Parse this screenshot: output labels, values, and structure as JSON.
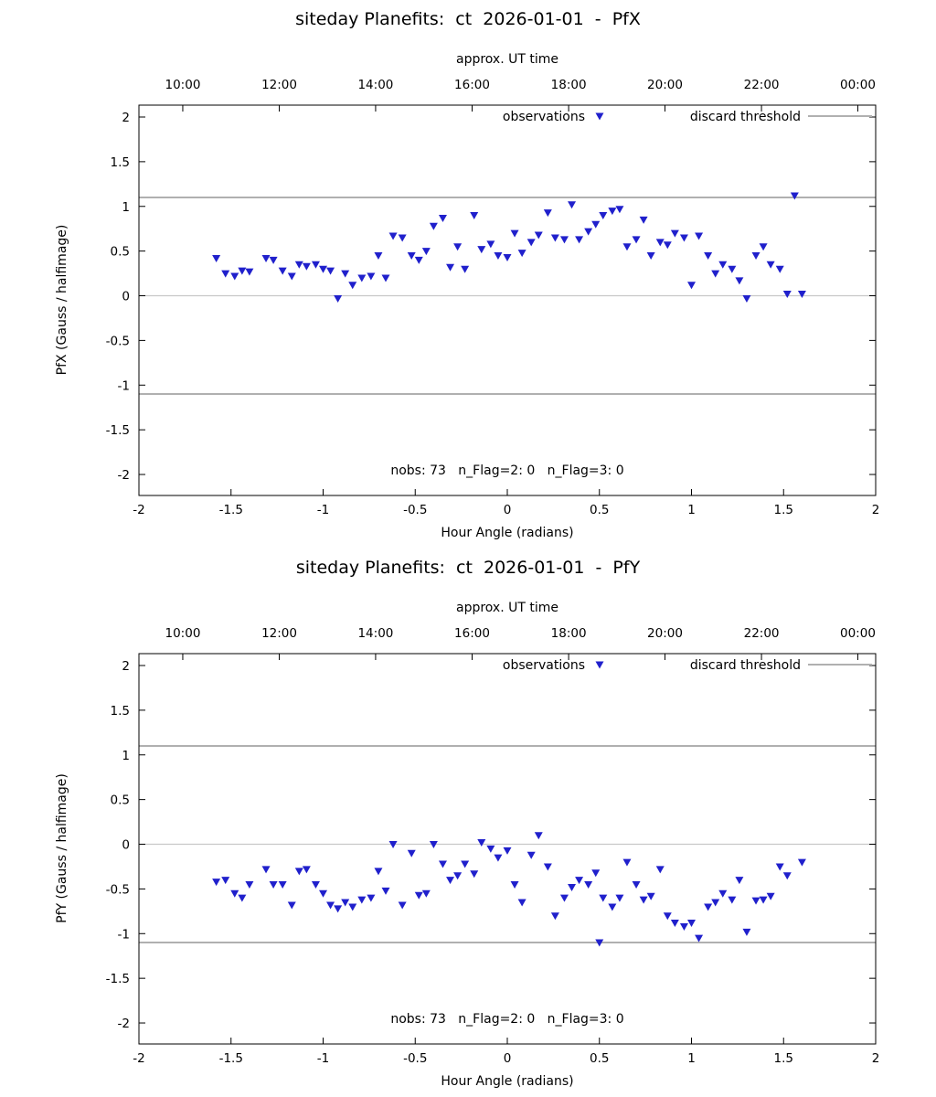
{
  "colors": {
    "points": "#2020cc",
    "threshold_line": "#b0b0b0",
    "zero_line": "#c8c8c8",
    "border": "#000000"
  },
  "chart_data": [
    {
      "type": "scatter",
      "marker": "triangle-down",
      "title": "siteday Planefits:  ct  2026-01-01  -  PfX",
      "top_axis_label": "approx. UT time",
      "xlabel": "Hour Angle (radians)",
      "ylabel": "PfX (Gauss / halfimage)",
      "annotation": "nobs: 73   n_Flag=2: 0   n_Flag=3: 0",
      "legend": [
        {
          "label": "observations",
          "marker": "triangle-down"
        },
        {
          "label": "discard threshold",
          "marker": "line"
        }
      ],
      "xlim": [
        -2,
        2
      ],
      "ylim": [
        -2.235,
        2.133
      ],
      "x_ticks": [
        -2,
        -1.5,
        -1,
        -0.5,
        0,
        0.5,
        1,
        1.5,
        2
      ],
      "x_tick_labels": [
        "-2",
        "-1.5",
        "-1",
        "-0.5",
        "0",
        "0.5",
        "1",
        "1.5",
        "2"
      ],
      "y_ticks": [
        -2,
        -1.5,
        -1,
        -0.5,
        0,
        0.5,
        1,
        1.5,
        2
      ],
      "y_tick_labels": [
        "-2",
        "-1.5",
        "-1",
        "-0.5",
        "0",
        "0.5",
        "1",
        "1.5",
        "2"
      ],
      "ut_ticks": [
        {
          "label": "10:00",
          "x": -1.762
        },
        {
          "label": "12:00",
          "x": -1.238
        },
        {
          "label": "14:00",
          "x": -0.715
        },
        {
          "label": "16:00",
          "x": -0.191
        },
        {
          "label": "18:00",
          "x": 0.333
        },
        {
          "label": "20:00",
          "x": 0.856
        },
        {
          "label": "22:00",
          "x": 1.38
        },
        {
          "label": "00:00",
          "x": 1.903
        }
      ],
      "thresholds": [
        1.1,
        -1.1
      ],
      "zero_line": 0,
      "points": [
        [
          -1.58,
          0.42
        ],
        [
          -1.53,
          0.25
        ],
        [
          -1.48,
          0.22
        ],
        [
          -1.44,
          0.28
        ],
        [
          -1.4,
          0.27
        ],
        [
          -1.31,
          0.42
        ],
        [
          -1.27,
          0.4
        ],
        [
          -1.22,
          0.28
        ],
        [
          -1.17,
          0.22
        ],
        [
          -1.13,
          0.35
        ],
        [
          -1.09,
          0.33
        ],
        [
          -1.04,
          0.35
        ],
        [
          -1.0,
          0.3
        ],
        [
          -0.96,
          0.28
        ],
        [
          -0.92,
          -0.03
        ],
        [
          -0.88,
          0.25
        ],
        [
          -0.84,
          0.12
        ],
        [
          -0.79,
          0.2
        ],
        [
          -0.74,
          0.22
        ],
        [
          -0.7,
          0.45
        ],
        [
          -0.66,
          0.2
        ],
        [
          -0.62,
          0.67
        ],
        [
          -0.57,
          0.65
        ],
        [
          -0.52,
          0.45
        ],
        [
          -0.48,
          0.4
        ],
        [
          -0.44,
          0.5
        ],
        [
          -0.4,
          0.78
        ],
        [
          -0.35,
          0.87
        ],
        [
          -0.31,
          0.32
        ],
        [
          -0.27,
          0.55
        ],
        [
          -0.23,
          0.3
        ],
        [
          -0.18,
          0.9
        ],
        [
          -0.14,
          0.52
        ],
        [
          -0.09,
          0.58
        ],
        [
          -0.05,
          0.45
        ],
        [
          0.0,
          0.43
        ],
        [
          0.04,
          0.7
        ],
        [
          0.08,
          0.48
        ],
        [
          0.13,
          0.6
        ],
        [
          0.17,
          0.68
        ],
        [
          0.22,
          0.93
        ],
        [
          0.26,
          0.65
        ],
        [
          0.31,
          0.63
        ],
        [
          0.35,
          1.02
        ],
        [
          0.39,
          0.63
        ],
        [
          0.44,
          0.72
        ],
        [
          0.48,
          0.8
        ],
        [
          0.52,
          0.9
        ],
        [
          0.57,
          0.95
        ],
        [
          0.61,
          0.97
        ],
        [
          0.65,
          0.55
        ],
        [
          0.7,
          0.63
        ],
        [
          0.74,
          0.85
        ],
        [
          0.78,
          0.45
        ],
        [
          0.83,
          0.6
        ],
        [
          0.87,
          0.57
        ],
        [
          0.91,
          0.7
        ],
        [
          0.96,
          0.65
        ],
        [
          1.0,
          0.12
        ],
        [
          1.04,
          0.67
        ],
        [
          1.09,
          0.45
        ],
        [
          1.13,
          0.25
        ],
        [
          1.17,
          0.35
        ],
        [
          1.22,
          0.3
        ],
        [
          1.26,
          0.17
        ],
        [
          1.3,
          -0.03
        ],
        [
          1.35,
          0.45
        ],
        [
          1.39,
          0.55
        ],
        [
          1.43,
          0.35
        ],
        [
          1.48,
          0.3
        ],
        [
          1.52,
          0.02
        ],
        [
          1.56,
          1.12
        ],
        [
          1.6,
          0.02
        ]
      ]
    },
    {
      "type": "scatter",
      "marker": "triangle-down",
      "title": "siteday Planefits:  ct  2026-01-01  -  PfY",
      "top_axis_label": "approx. UT time",
      "xlabel": "Hour Angle (radians)",
      "ylabel": "PfY (Gauss / halfimage)",
      "annotation": "nobs: 73   n_Flag=2: 0   n_Flag=3: 0",
      "legend": [
        {
          "label": "observations",
          "marker": "triangle-down"
        },
        {
          "label": "discard threshold",
          "marker": "line"
        }
      ],
      "xlim": [
        -2,
        2
      ],
      "ylim": [
        -2.235,
        2.133
      ],
      "x_ticks": [
        -2,
        -1.5,
        -1,
        -0.5,
        0,
        0.5,
        1,
        1.5,
        2
      ],
      "x_tick_labels": [
        "-2",
        "-1.5",
        "-1",
        "-0.5",
        "0",
        "0.5",
        "1",
        "1.5",
        "2"
      ],
      "y_ticks": [
        -2,
        -1.5,
        -1,
        -0.5,
        0,
        0.5,
        1,
        1.5,
        2
      ],
      "y_tick_labels": [
        "-2",
        "-1.5",
        "-1",
        "-0.5",
        "0",
        "0.5",
        "1",
        "1.5",
        "2"
      ],
      "ut_ticks": [
        {
          "label": "10:00",
          "x": -1.762
        },
        {
          "label": "12:00",
          "x": -1.238
        },
        {
          "label": "14:00",
          "x": -0.715
        },
        {
          "label": "16:00",
          "x": -0.191
        },
        {
          "label": "18:00",
          "x": 0.333
        },
        {
          "label": "20:00",
          "x": 0.856
        },
        {
          "label": "22:00",
          "x": 1.38
        },
        {
          "label": "00:00",
          "x": 1.903
        }
      ],
      "thresholds": [
        1.1,
        -1.1
      ],
      "zero_line": 0,
      "points": [
        [
          -1.58,
          -0.42
        ],
        [
          -1.53,
          -0.4
        ],
        [
          -1.48,
          -0.55
        ],
        [
          -1.44,
          -0.6
        ],
        [
          -1.4,
          -0.45
        ],
        [
          -1.31,
          -0.28
        ],
        [
          -1.27,
          -0.45
        ],
        [
          -1.22,
          -0.45
        ],
        [
          -1.17,
          -0.68
        ],
        [
          -1.13,
          -0.3
        ],
        [
          -1.09,
          -0.28
        ],
        [
          -1.04,
          -0.45
        ],
        [
          -1.0,
          -0.55
        ],
        [
          -0.96,
          -0.68
        ],
        [
          -0.92,
          -0.72
        ],
        [
          -0.88,
          -0.65
        ],
        [
          -0.84,
          -0.7
        ],
        [
          -0.79,
          -0.62
        ],
        [
          -0.74,
          -0.6
        ],
        [
          -0.7,
          -0.3
        ],
        [
          -0.66,
          -0.52
        ],
        [
          -0.62,
          0.0
        ],
        [
          -0.57,
          -0.68
        ],
        [
          -0.52,
          -0.1
        ],
        [
          -0.48,
          -0.57
        ],
        [
          -0.44,
          -0.55
        ],
        [
          -0.4,
          0.0
        ],
        [
          -0.35,
          -0.22
        ],
        [
          -0.31,
          -0.4
        ],
        [
          -0.27,
          -0.35
        ],
        [
          -0.23,
          -0.22
        ],
        [
          -0.18,
          -0.33
        ],
        [
          -0.14,
          0.02
        ],
        [
          -0.09,
          -0.05
        ],
        [
          -0.05,
          -0.15
        ],
        [
          0.0,
          -0.07
        ],
        [
          0.04,
          -0.45
        ],
        [
          0.08,
          -0.65
        ],
        [
          0.13,
          -0.12
        ],
        [
          0.17,
          0.1
        ],
        [
          0.22,
          -0.25
        ],
        [
          0.26,
          -0.8
        ],
        [
          0.31,
          -0.6
        ],
        [
          0.35,
          -0.48
        ],
        [
          0.39,
          -0.4
        ],
        [
          0.44,
          -0.45
        ],
        [
          0.48,
          -0.32
        ],
        [
          0.5,
          -1.1
        ],
        [
          0.52,
          -0.6
        ],
        [
          0.57,
          -0.7
        ],
        [
          0.61,
          -0.6
        ],
        [
          0.65,
          -0.2
        ],
        [
          0.7,
          -0.45
        ],
        [
          0.74,
          -0.62
        ],
        [
          0.78,
          -0.58
        ],
        [
          0.83,
          -0.28
        ],
        [
          0.87,
          -0.8
        ],
        [
          0.91,
          -0.88
        ],
        [
          0.96,
          -0.92
        ],
        [
          1.0,
          -0.88
        ],
        [
          1.04,
          -1.05
        ],
        [
          1.09,
          -0.7
        ],
        [
          1.13,
          -0.65
        ],
        [
          1.17,
          -0.55
        ],
        [
          1.22,
          -0.62
        ],
        [
          1.26,
          -0.4
        ],
        [
          1.3,
          -0.98
        ],
        [
          1.35,
          -0.63
        ],
        [
          1.39,
          -0.62
        ],
        [
          1.43,
          -0.58
        ],
        [
          1.48,
          -0.25
        ],
        [
          1.52,
          -0.35
        ],
        [
          1.6,
          -0.2
        ]
      ]
    }
  ]
}
